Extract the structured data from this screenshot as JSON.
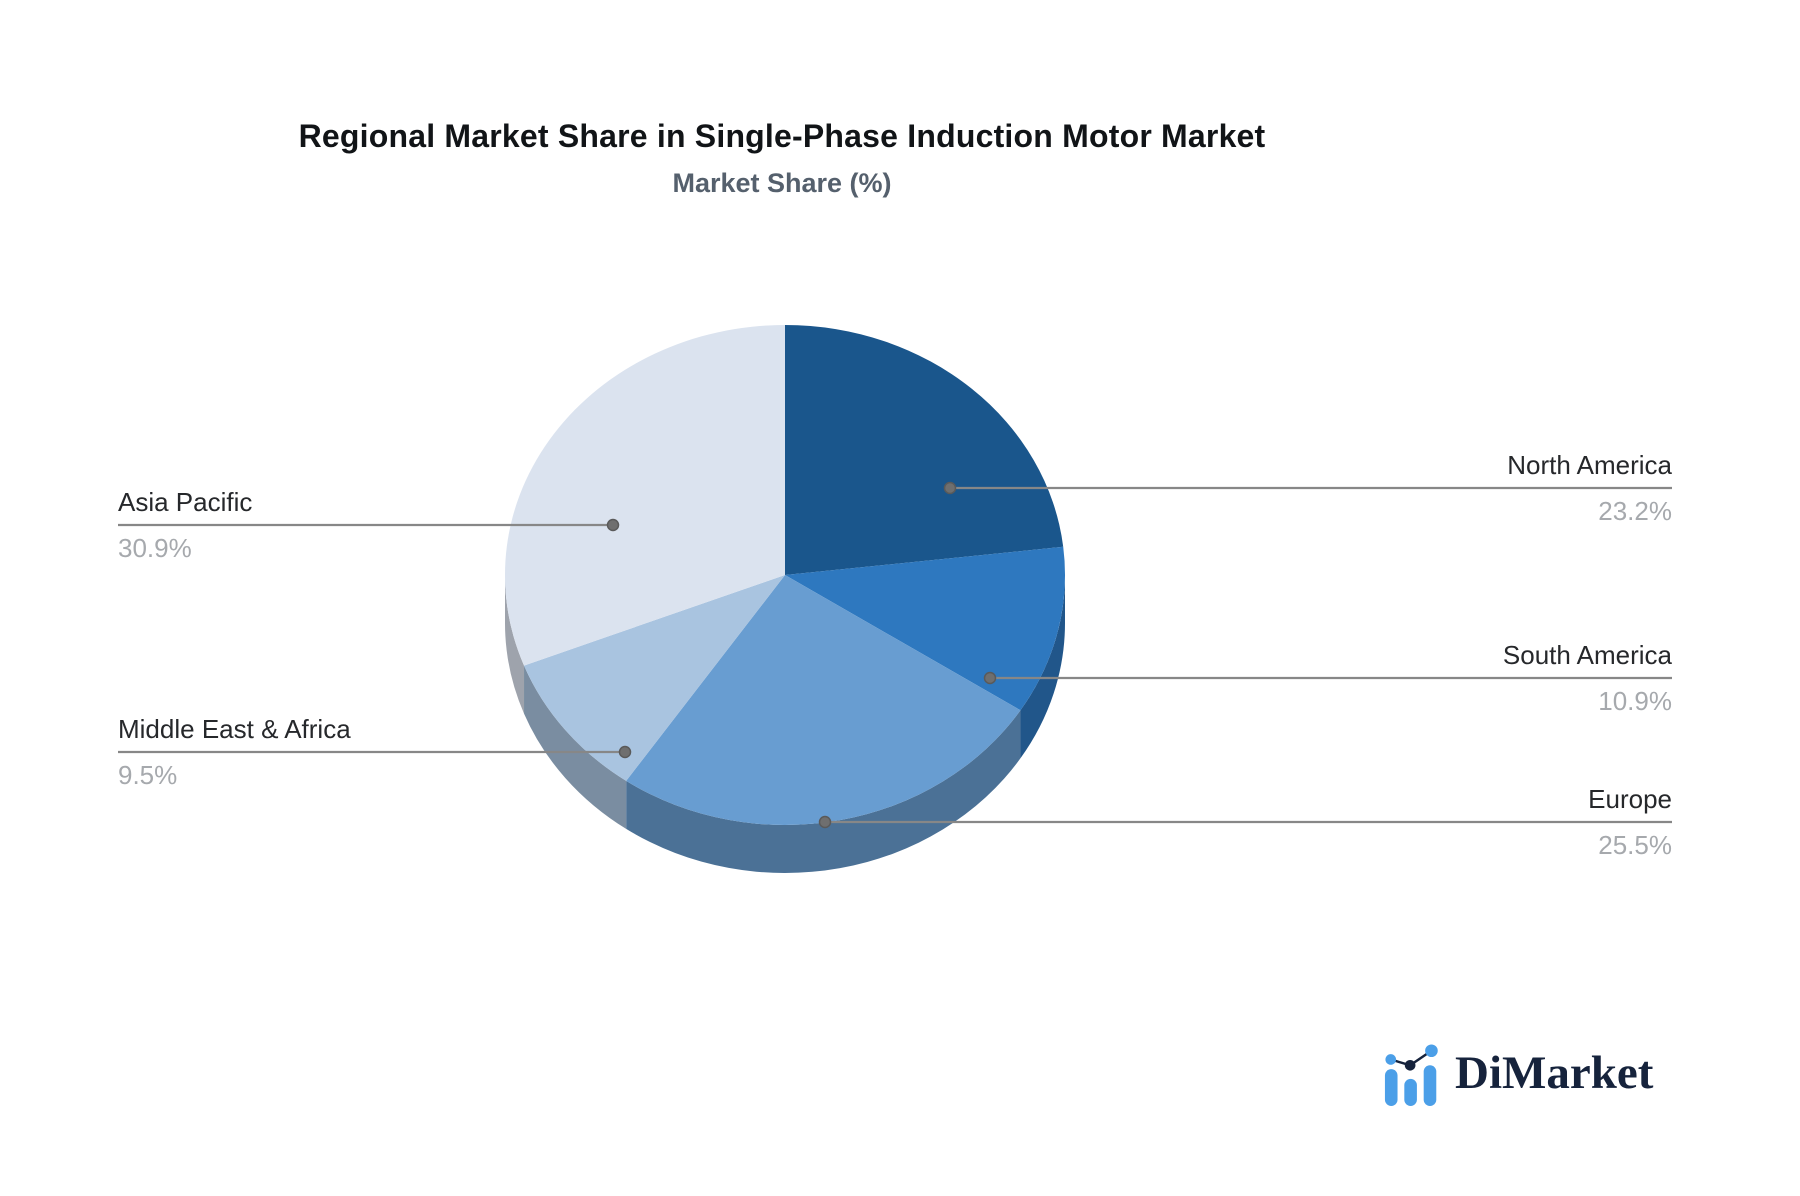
{
  "title": "Regional Market Share in Single-Phase Induction Motor Market",
  "subtitle": "Market Share (%)",
  "chart_data": {
    "type": "pie",
    "style": "3d",
    "title": "Regional Market Share in Single-Phase Induction Motor Market",
    "subtitle": "Market Share (%)",
    "unit": "%",
    "start_angle_deg": 0,
    "direction": "clockwise",
    "legend_position": "callout-labels",
    "labels": [
      "North America",
      "South America",
      "Europe",
      "Middle East & Africa",
      "Asia Pacific"
    ],
    "values": [
      23.2,
      10.9,
      25.5,
      9.5,
      30.9
    ],
    "percent_labels": [
      "23.2%",
      "10.9%",
      "25.5%",
      "9.5%",
      "30.9%"
    ],
    "colors": [
      "#1a568c",
      "#2e78bf",
      "#689dd1",
      "#a9c4e0",
      "#dbe3ef"
    ],
    "label_sides": [
      "right",
      "right",
      "right",
      "left",
      "left"
    ],
    "leader_line_color": "#878787",
    "label_color": "#26282b",
    "value_color": "#a6a9ad"
  },
  "brand": {
    "name": "DiMarket",
    "logo_icon": "bar-chart-trend-icon",
    "icon_bar_color": "#4b9fe8",
    "wordmark_color": "#16233c"
  }
}
